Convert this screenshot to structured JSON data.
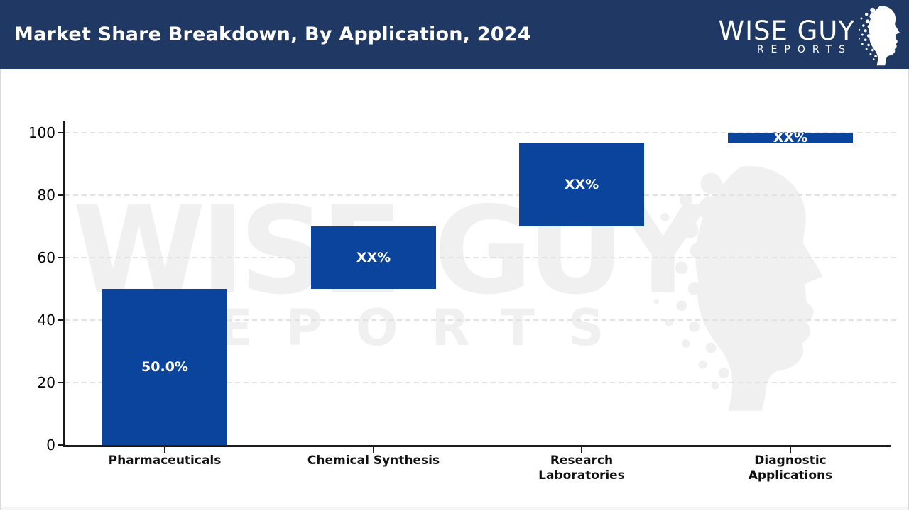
{
  "header": {
    "title": "Market Share Breakdown, By Application, 2024",
    "brand": {
      "wordmark": "WISE GUY",
      "subtext": "REPORTS"
    }
  },
  "watermark": {
    "row1": "WISE GUY",
    "row2": "REPORTS"
  },
  "colors": {
    "header_bg": "#1f3864",
    "bar_blue": "#0b449c",
    "grid": "#e2e2e2",
    "watermark": "#f0f0f1",
    "axis": "#1a1a1a",
    "bar_label": "#ffffff",
    "overflow_label_dark": "#101f3c"
  },
  "chart_data": {
    "type": "bar",
    "subtype": "floating-segment-bars",
    "title": "Market Share Breakdown, By Application, 2024",
    "xlabel": "",
    "ylabel": "",
    "ylim": [
      0,
      100
    ],
    "yticks": [
      0,
      20,
      40,
      60,
      80,
      100
    ],
    "grid": "horizontal-dashed",
    "legend": "none",
    "categories": [
      "Pharmaceuticals",
      "Chemical Synthesis",
      "Research Laboratories",
      "Diagnostic Applications"
    ],
    "segments": [
      {
        "category_lines": [
          "Pharmaceuticals"
        ],
        "start": 0,
        "end": 50,
        "label": "50.0%"
      },
      {
        "category_lines": [
          "Chemical Synthesis"
        ],
        "start": 50,
        "end": 70,
        "label": "XX%"
      },
      {
        "category_lines": [
          "Research",
          "Laboratories"
        ],
        "start": 70,
        "end": 96.8,
        "label": "XX%"
      },
      {
        "category_lines": [
          "Diagnostic",
          "Applications"
        ],
        "start": 96.8,
        "end": 100,
        "label": "XX%"
      }
    ]
  }
}
